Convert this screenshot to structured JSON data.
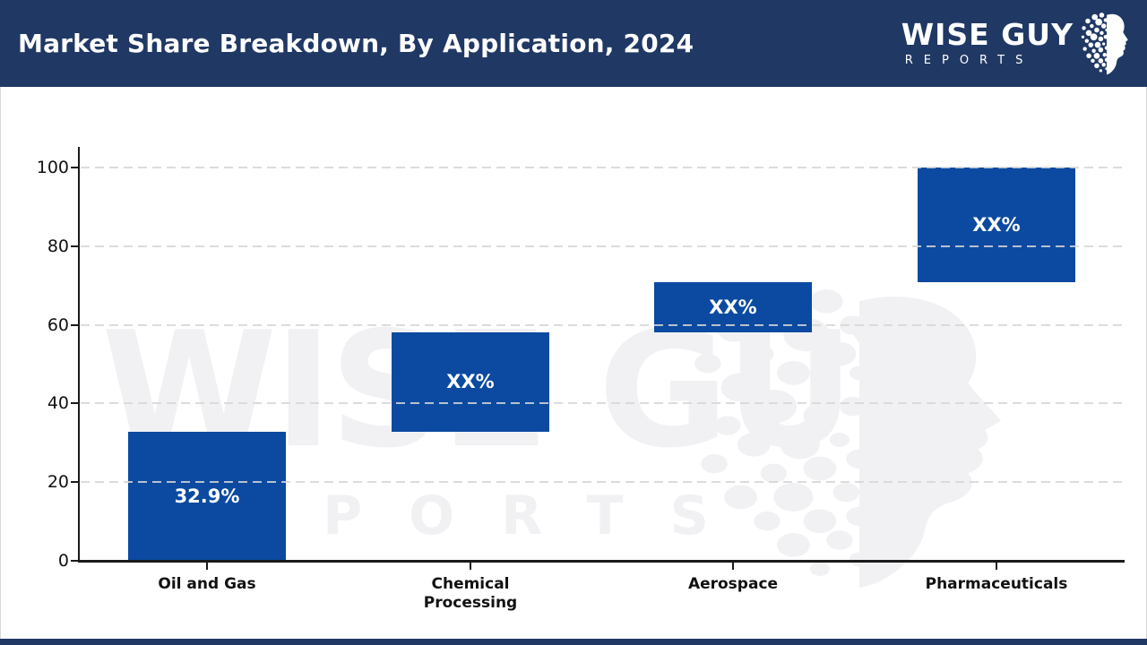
{
  "header": {
    "title": "Market Share Breakdown, By Application, 2024",
    "logo": {
      "wordmark": "WISE GUY",
      "subtitle": "REPORTS"
    }
  },
  "watermark": {
    "wordmark": "WISE GUY",
    "subtitle": "REPORTS"
  },
  "colors": {
    "header_bg": "#203864",
    "footer_bg": "#203864",
    "bar": "#0b4aa0",
    "grid": "rgba(214,214,214,0.85)",
    "axis": "#1a1a1a",
    "watermark": "#f1f1f4",
    "title_text": "#ffffff",
    "bar_label_text": "#ffffff"
  },
  "chart_data": {
    "type": "bar",
    "subtype": "floating-waterfall",
    "title": "Market Share Breakdown, By Application, 2024",
    "categories": [
      "Oil and Gas",
      "Chemical\nProcessing",
      "Aerospace",
      "Pharmaceuticals"
    ],
    "segments": [
      {
        "category": "Oil and Gas",
        "start": 0,
        "end": 32.9,
        "label": "32.9%"
      },
      {
        "category": "Chemical Processing",
        "start": 32.9,
        "end": 58.1,
        "label": "XX%"
      },
      {
        "category": "Aerospace",
        "start": 58.1,
        "end": 70.9,
        "label": "XX%"
      },
      {
        "category": "Pharmaceuticals",
        "start": 70.9,
        "end": 100,
        "label": "XX%"
      }
    ],
    "ylim": [
      0,
      100
    ],
    "yticks": [
      0,
      20,
      40,
      60,
      80,
      100
    ],
    "grid": true,
    "legend": false,
    "ylabel": "",
    "xlabel": ""
  }
}
